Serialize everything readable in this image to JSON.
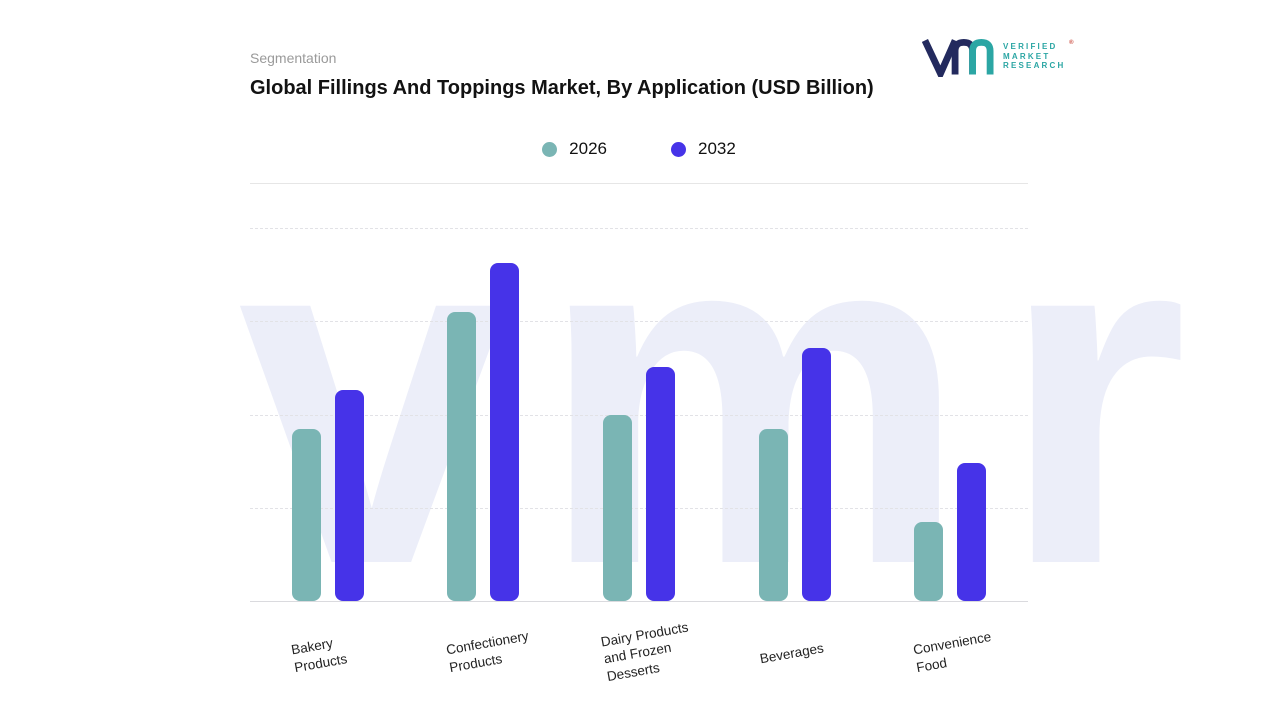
{
  "header": {
    "eyebrow": "Segmentation",
    "title": "Global Fillings And Toppings Market, By Application (USD Billion)"
  },
  "logo": {
    "lines": [
      "VERIFIED",
      "MARKET",
      "RESEARCH"
    ],
    "registered_mark": "®",
    "teal": "#2BA6A4",
    "navy": "#232A5E"
  },
  "legend": [
    {
      "label": "2026",
      "color": "#7AB5B4"
    },
    {
      "label": "2032",
      "color": "#4633E8"
    }
  ],
  "watermark": {
    "text": "vmr"
  },
  "chart_data": {
    "type": "bar",
    "title": "Global Fillings And Toppings Market, By Application (USD Billion)",
    "xlabel": "",
    "ylabel": "",
    "units": "USD Billion",
    "categories": [
      "Bakery Products",
      "Confectionery Products",
      "Dairy Products and Frozen Desserts",
      "Beverages",
      "Convenience Food"
    ],
    "label_lines": [
      [
        "Bakery",
        "Products"
      ],
      [
        "Confectionery",
        "Products"
      ],
      [
        "Dairy Products",
        "and Frozen",
        "Desserts"
      ],
      [
        "Beverages"
      ],
      [
        "Convenience",
        "Food"
      ]
    ],
    "series": [
      {
        "name": "2026",
        "color": "#7AB5B4",
        "values": [
          1.85,
          3.1,
          2.0,
          1.85,
          0.85
        ]
      },
      {
        "name": "2032",
        "color": "#4633E8",
        "values": [
          2.26,
          3.62,
          2.51,
          2.71,
          1.48
        ]
      }
    ],
    "ylim": [
      0,
      4
    ],
    "y_axis_ticks_labeled": false,
    "grid": "horizontal-dashed",
    "legend_position": "top"
  }
}
